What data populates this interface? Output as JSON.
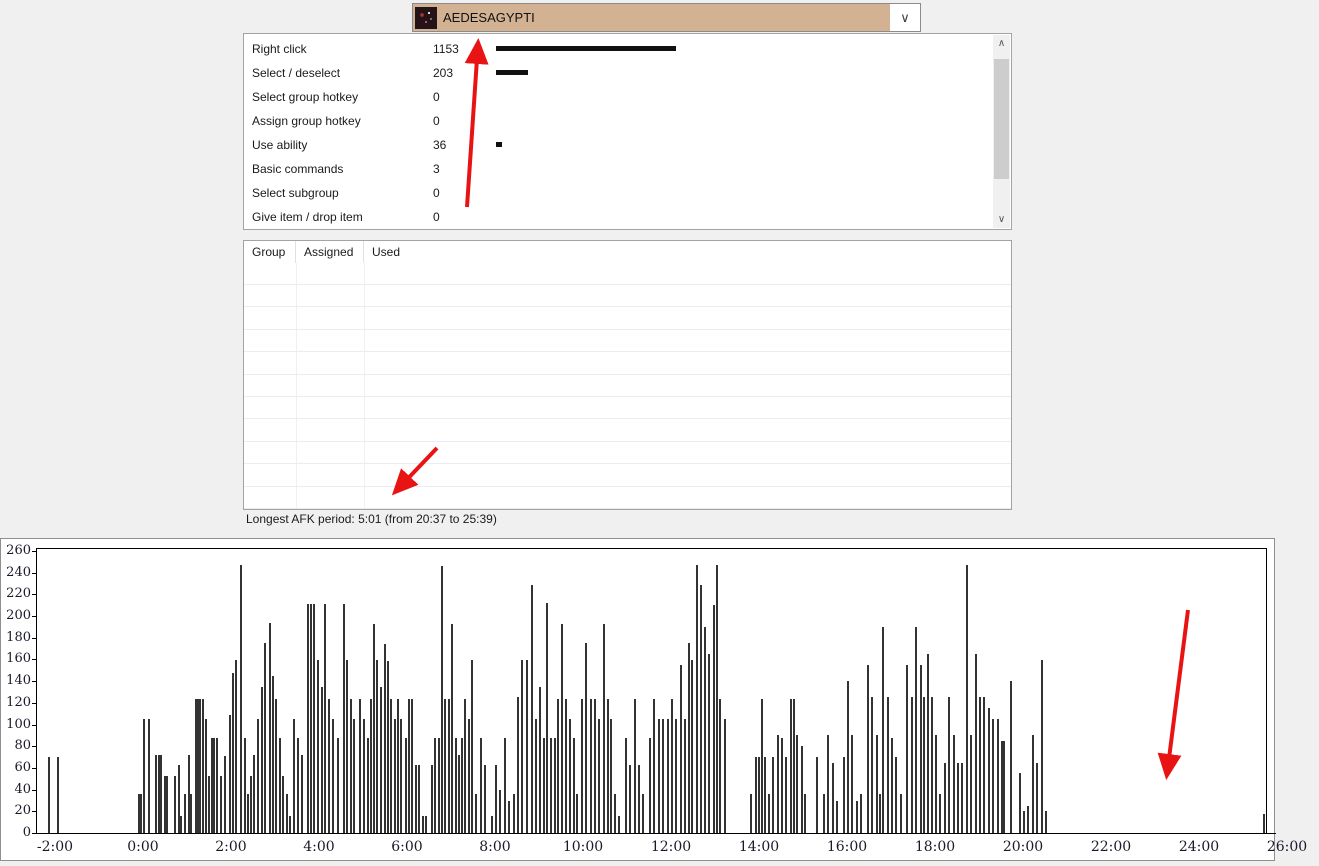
{
  "player_select": {
    "value": "AEDESAGYPTI",
    "icon": "player-portrait"
  },
  "action_stats": {
    "rows": [
      {
        "label": "Right click",
        "value": 1153
      },
      {
        "label": "Select / deselect",
        "value": 203
      },
      {
        "label": "Select group hotkey",
        "value": 0
      },
      {
        "label": "Assign group hotkey",
        "value": 0
      },
      {
        "label": "Use ability",
        "value": 36
      },
      {
        "label": "Basic commands",
        "value": 3
      },
      {
        "label": "Select subgroup",
        "value": 0
      },
      {
        "label": "Give item / drop item",
        "value": 0
      }
    ],
    "bar_color": "#111111"
  },
  "hotkey_table": {
    "columns": [
      "Group",
      "Assigned",
      "Used"
    ],
    "rows": [],
    "visible_empty_rows": 11
  },
  "afk_note": "Longest AFK period: 5:01 (from 20:37 to 25:39)",
  "chart_data": {
    "type": "bar",
    "title": "",
    "ylim": [
      0,
      260
    ],
    "y_ticks": [
      0,
      20,
      40,
      60,
      80,
      100,
      120,
      140,
      160,
      180,
      200,
      220,
      240,
      260
    ],
    "x_tick_labels": [
      "-2:00",
      "0:00",
      "2:00",
      "4:00",
      "6:00",
      "8:00",
      "10:00",
      "12:00",
      "14:00",
      "16:00",
      "18:00",
      "20:00",
      "22:00",
      "24:00",
      "26:00"
    ],
    "x_tick_start_minutes": -2,
    "x_tick_step_minutes": 2,
    "grid": false,
    "legend": "none",
    "bar_color": "#333333",
    "bars": [
      [
        -2.15,
        70
      ],
      [
        -1.95,
        70
      ],
      [
        -0.12,
        36
      ],
      [
        -0.07,
        36
      ],
      [
        0.01,
        105
      ],
      [
        0.12,
        105
      ],
      [
        0.28,
        72
      ],
      [
        0.33,
        72
      ],
      [
        0.38,
        72
      ],
      [
        0.48,
        53
      ],
      [
        0.53,
        53
      ],
      [
        0.7,
        53
      ],
      [
        0.8,
        63
      ],
      [
        0.85,
        16
      ],
      [
        0.93,
        36
      ],
      [
        1.02,
        72
      ],
      [
        1.07,
        36
      ],
      [
        1.18,
        124
      ],
      [
        1.23,
        124
      ],
      [
        1.28,
        124
      ],
      [
        1.33,
        124
      ],
      [
        1.4,
        105
      ],
      [
        1.48,
        53
      ],
      [
        1.55,
        88
      ],
      [
        1.6,
        88
      ],
      [
        1.65,
        88
      ],
      [
        1.75,
        53
      ],
      [
        1.85,
        71
      ],
      [
        1.95,
        109
      ],
      [
        2.03,
        148
      ],
      [
        2.1,
        160
      ],
      [
        2.21,
        247
      ],
      [
        2.3,
        88
      ],
      [
        2.36,
        36
      ],
      [
        2.42,
        53
      ],
      [
        2.5,
        72
      ],
      [
        2.58,
        105
      ],
      [
        2.68,
        135
      ],
      [
        2.76,
        175
      ],
      [
        2.86,
        194
      ],
      [
        2.93,
        145
      ],
      [
        3.0,
        124
      ],
      [
        3.08,
        88
      ],
      [
        3.16,
        53
      ],
      [
        3.24,
        36
      ],
      [
        3.32,
        16
      ],
      [
        3.4,
        105
      ],
      [
        3.5,
        88
      ],
      [
        3.6,
        72
      ],
      [
        3.72,
        211
      ],
      [
        3.79,
        211
      ],
      [
        3.86,
        211
      ],
      [
        3.95,
        160
      ],
      [
        4.05,
        135
      ],
      [
        4.12,
        211
      ],
      [
        4.2,
        124
      ],
      [
        4.3,
        105
      ],
      [
        4.4,
        88
      ],
      [
        4.54,
        211
      ],
      [
        4.62,
        160
      ],
      [
        4.7,
        124
      ],
      [
        4.78,
        105
      ],
      [
        4.9,
        124
      ],
      [
        5.0,
        105
      ],
      [
        5.08,
        88
      ],
      [
        5.16,
        124
      ],
      [
        5.23,
        193
      ],
      [
        5.3,
        160
      ],
      [
        5.38,
        135
      ],
      [
        5.48,
        174
      ],
      [
        5.55,
        159
      ],
      [
        5.62,
        124
      ],
      [
        5.7,
        105
      ],
      [
        5.78,
        124
      ],
      [
        5.85,
        105
      ],
      [
        5.95,
        88
      ],
      [
        6.02,
        124
      ],
      [
        6.1,
        124
      ],
      [
        6.18,
        63
      ],
      [
        6.25,
        63
      ],
      [
        6.33,
        16
      ],
      [
        6.4,
        16
      ],
      [
        6.55,
        63
      ],
      [
        6.62,
        88
      ],
      [
        6.7,
        88
      ],
      [
        6.77,
        246
      ],
      [
        6.85,
        124
      ],
      [
        6.92,
        124
      ],
      [
        7.0,
        193
      ],
      [
        7.08,
        88
      ],
      [
        7.15,
        72
      ],
      [
        7.22,
        88
      ],
      [
        7.3,
        124
      ],
      [
        7.38,
        105
      ],
      [
        7.45,
        160
      ],
      [
        7.55,
        36
      ],
      [
        7.65,
        88
      ],
      [
        7.75,
        63
      ],
      [
        7.9,
        16
      ],
      [
        8.0,
        63
      ],
      [
        8.1,
        40
      ],
      [
        8.2,
        88
      ],
      [
        8.3,
        30
      ],
      [
        8.4,
        36
      ],
      [
        8.5,
        125
      ],
      [
        8.6,
        160
      ],
      [
        8.7,
        160
      ],
      [
        8.82,
        229
      ],
      [
        8.9,
        105
      ],
      [
        9.0,
        135
      ],
      [
        9.08,
        88
      ],
      [
        9.16,
        212
      ],
      [
        9.25,
        88
      ],
      [
        9.33,
        88
      ],
      [
        9.4,
        124
      ],
      [
        9.5,
        193
      ],
      [
        9.6,
        124
      ],
      [
        9.68,
        105
      ],
      [
        9.78,
        88
      ],
      [
        9.85,
        36
      ],
      [
        9.95,
        124
      ],
      [
        10.05,
        175
      ],
      [
        10.15,
        124
      ],
      [
        10.25,
        124
      ],
      [
        10.35,
        105
      ],
      [
        10.45,
        193
      ],
      [
        10.55,
        124
      ],
      [
        10.62,
        105
      ],
      [
        10.7,
        36
      ],
      [
        10.8,
        16
      ],
      [
        10.95,
        88
      ],
      [
        11.05,
        63
      ],
      [
        11.15,
        124
      ],
      [
        11.25,
        63
      ],
      [
        11.35,
        36
      ],
      [
        11.5,
        88
      ],
      [
        11.6,
        124
      ],
      [
        11.7,
        105
      ],
      [
        11.8,
        105
      ],
      [
        11.9,
        105
      ],
      [
        12.0,
        124
      ],
      [
        12.1,
        105
      ],
      [
        12.2,
        155
      ],
      [
        12.3,
        105
      ],
      [
        12.38,
        175
      ],
      [
        12.45,
        160
      ],
      [
        12.57,
        247
      ],
      [
        12.65,
        229
      ],
      [
        12.75,
        190
      ],
      [
        12.85,
        165
      ],
      [
        12.95,
        210
      ],
      [
        13.03,
        247
      ],
      [
        13.1,
        124
      ],
      [
        13.2,
        105
      ],
      [
        13.8,
        36
      ],
      [
        13.9,
        70
      ],
      [
        13.97,
        70
      ],
      [
        14.05,
        124
      ],
      [
        14.12,
        70
      ],
      [
        14.2,
        36
      ],
      [
        14.3,
        70
      ],
      [
        14.4,
        90
      ],
      [
        14.5,
        88
      ],
      [
        14.6,
        70
      ],
      [
        14.7,
        124
      ],
      [
        14.77,
        124
      ],
      [
        14.85,
        90
      ],
      [
        14.95,
        80
      ],
      [
        15.02,
        36
      ],
      [
        15.3,
        70
      ],
      [
        15.45,
        36
      ],
      [
        15.55,
        90
      ],
      [
        15.65,
        65
      ],
      [
        15.75,
        30
      ],
      [
        15.9,
        70
      ],
      [
        16.0,
        140
      ],
      [
        16.1,
        90
      ],
      [
        16.2,
        30
      ],
      [
        16.3,
        36
      ],
      [
        16.45,
        155
      ],
      [
        16.55,
        125
      ],
      [
        16.65,
        90
      ],
      [
        16.72,
        36
      ],
      [
        16.8,
        190
      ],
      [
        16.9,
        125
      ],
      [
        17.0,
        88
      ],
      [
        17.1,
        70
      ],
      [
        17.2,
        36
      ],
      [
        17.35,
        155
      ],
      [
        17.45,
        125
      ],
      [
        17.55,
        190
      ],
      [
        17.65,
        155
      ],
      [
        17.72,
        125
      ],
      [
        17.82,
        165
      ],
      [
        17.9,
        125
      ],
      [
        18.0,
        90
      ],
      [
        18.1,
        36
      ],
      [
        18.2,
        65
      ],
      [
        18.3,
        125
      ],
      [
        18.4,
        90
      ],
      [
        18.5,
        65
      ],
      [
        18.6,
        65
      ],
      [
        18.7,
        247
      ],
      [
        18.8,
        90
      ],
      [
        18.9,
        165
      ],
      [
        19.0,
        125
      ],
      [
        19.1,
        125
      ],
      [
        19.2,
        115
      ],
      [
        19.3,
        105
      ],
      [
        19.4,
        105
      ],
      [
        19.5,
        85
      ],
      [
        19.55,
        85
      ],
      [
        19.7,
        140
      ],
      [
        19.9,
        55
      ],
      [
        20.0,
        20
      ],
      [
        20.1,
        25
      ],
      [
        20.2,
        90
      ],
      [
        20.3,
        65
      ],
      [
        20.4,
        160
      ],
      [
        20.5,
        20
      ],
      [
        25.45,
        18
      ]
    ]
  },
  "annotations": {
    "color": "#e81313",
    "arrows": [
      {
        "from": [
          467,
          207
        ],
        "to": [
          478,
          44
        ]
      },
      {
        "from": [
          437,
          448
        ],
        "to": [
          396,
          491
        ]
      },
      {
        "from": [
          1188,
          610
        ],
        "to": [
          1167,
          774
        ]
      }
    ]
  },
  "scrollbar": {
    "up_glyph": "∧",
    "down_glyph": "∨"
  },
  "combo_chevron": "∨"
}
